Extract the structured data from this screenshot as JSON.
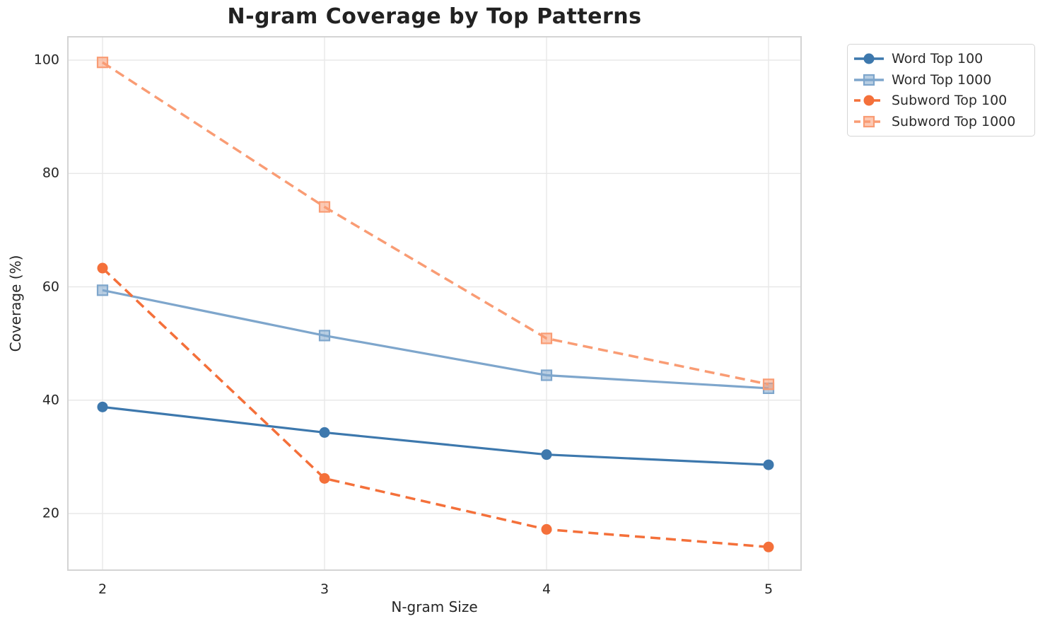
{
  "chart_data": {
    "type": "line",
    "title": "N-gram Coverage by Top Patterns",
    "xlabel": "N-gram Size",
    "ylabel": "Coverage (%)",
    "x": [
      2,
      3,
      4,
      5
    ],
    "x_tick_labels": [
      "2",
      "3",
      "4",
      "5"
    ],
    "y_ticks": [
      20,
      40,
      60,
      80,
      100
    ],
    "ylim": [
      10,
      104
    ],
    "grid": true,
    "legend_position": "outside upper right",
    "series": [
      {
        "name": "Word Top 100",
        "color": "#3d78ad",
        "marker": "circle",
        "dash": "solid",
        "values": [
          38.8,
          34.3,
          30.4,
          28.6
        ]
      },
      {
        "name": "Word Top 1000",
        "color": "#7ea6cc",
        "marker": "square",
        "dash": "solid",
        "values": [
          59.4,
          51.4,
          44.4,
          42.1
        ]
      },
      {
        "name": "Subword Top 100",
        "color": "#f4703a",
        "marker": "circle",
        "dash": "dashed",
        "values": [
          63.3,
          26.2,
          17.2,
          14.1
        ]
      },
      {
        "name": "Subword Top 1000",
        "color": "#f99c74",
        "marker": "square",
        "dash": "dashed",
        "values": [
          99.6,
          74.1,
          50.9,
          42.8
        ]
      }
    ],
    "style": {
      "grid_color": "#e8e8e8",
      "spine_color": "#d4d4d4",
      "text_color": "#262626",
      "background": "#ffffff"
    }
  }
}
